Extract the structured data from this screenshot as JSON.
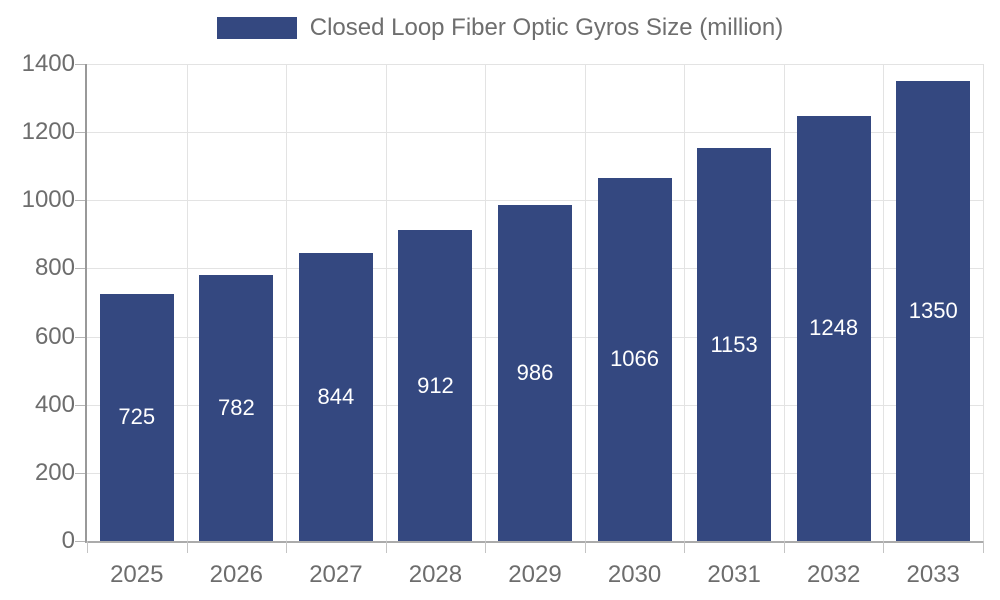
{
  "legend": {
    "label": "Closed Loop Fiber Optic Gyros Size (million)"
  },
  "chart_data": {
    "type": "bar",
    "title": "Closed Loop Fiber Optic Gyros Size (million)",
    "categories": [
      "2025",
      "2026",
      "2027",
      "2028",
      "2029",
      "2030",
      "2031",
      "2032",
      "2033"
    ],
    "values": [
      725,
      782,
      844,
      912,
      986,
      1066,
      1153,
      1248,
      1350
    ],
    "xlabel": "",
    "ylabel": "",
    "ylim": [
      0,
      1400
    ],
    "yticks": [
      0,
      200,
      400,
      600,
      800,
      1000,
      1200,
      1400
    ],
    "grid": true,
    "legend_position": "top-center",
    "bar_color": "#344880",
    "value_label_color": "#ffffff",
    "axis_text_color": "#6d6d6d",
    "gridline_color": "#e3e3e3"
  }
}
